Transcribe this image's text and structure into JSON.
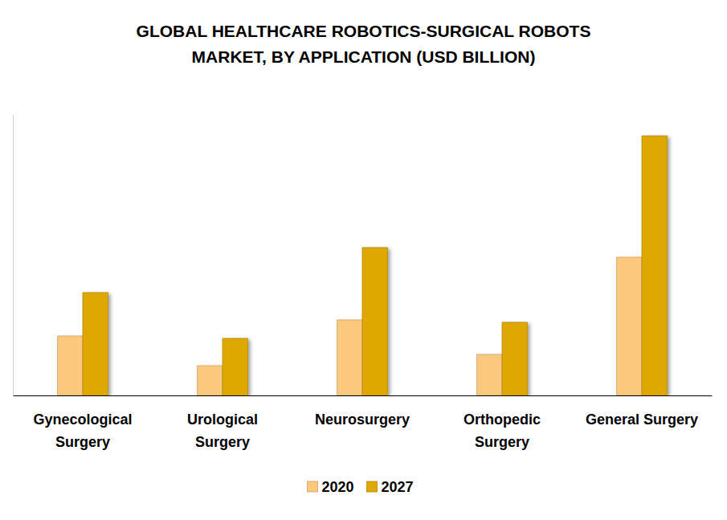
{
  "chart_data": {
    "type": "bar",
    "title": [
      "GLOBAL HEALTHCARE ROBOTICS-SURGICAL ROBOTS",
      "MARKET, BY APPLICATION (USD BILLION)"
    ],
    "categories": [
      "Gynecological Surgery",
      "Urological Surgery",
      "Neurosurgery",
      "Orthopedic Surgery",
      "General Surgery"
    ],
    "series": [
      {
        "name": "2020",
        "color": "#fbc97e",
        "values": [
          0.74,
          0.37,
          0.94,
          0.51,
          1.72
        ]
      },
      {
        "name": "2027",
        "color": "#dea800",
        "values": [
          1.28,
          0.71,
          1.84,
          0.91,
          3.23
        ]
      }
    ],
    "ylim": [
      0,
      3.5
    ],
    "tick_labels": "x",
    "grid": false,
    "legend": "bottom"
  }
}
